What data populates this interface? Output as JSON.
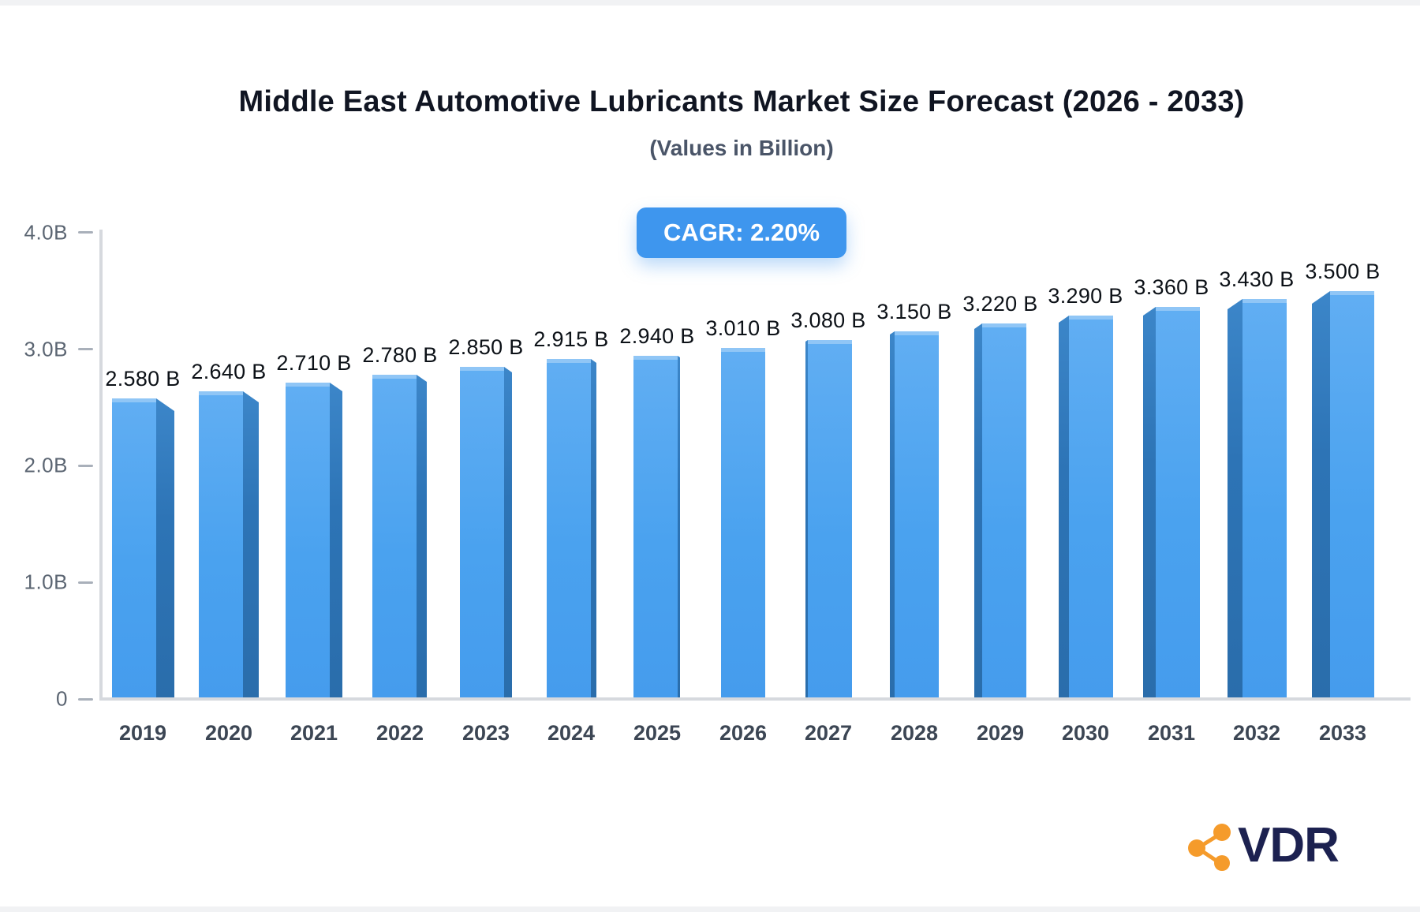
{
  "title": "Middle East Automotive Lubricants Market Size Forecast (2026 - 2033)",
  "subtitle": "(Values in Billion)",
  "cagr_badge": "CAGR: 2.20%",
  "logo": {
    "text": "VDR",
    "icon": "share-network-icon",
    "icon_color": "#F59B2B",
    "text_color": "#1C2150"
  },
  "colors": {
    "bar_face": "#4DA3F0",
    "bar_side": "#2D74B6",
    "badge_bg": "#3E96EE",
    "axis": "#D6D9DE",
    "tick_text": "#5B6572",
    "year_text": "#3C4654"
  },
  "chart_data": {
    "type": "bar",
    "style": "3d-columns-center-perspective",
    "title": "Middle East Automotive Lubricants Market Size Forecast (2026 - 2033)",
    "subtitle": "(Values in Billion)",
    "cagr": "2.20%",
    "categories": [
      "2019",
      "2020",
      "2021",
      "2022",
      "2023",
      "2024",
      "2025",
      "2026",
      "2027",
      "2028",
      "2029",
      "2030",
      "2031",
      "2032",
      "2033"
    ],
    "values": [
      2.58,
      2.64,
      2.71,
      2.78,
      2.85,
      2.915,
      2.94,
      3.01,
      3.08,
      3.15,
      3.22,
      3.29,
      3.36,
      3.43,
      3.5
    ],
    "display_labels": [
      "2.580 B",
      "2.640 B",
      "2.710 B",
      "2.780 B",
      "2.850 B",
      "2.915 B",
      "2.940 B",
      "3.010 B",
      "3.080 B",
      "3.150 B",
      "3.220 B",
      "3.290 B",
      "3.360 B",
      "3.430 B",
      "3.500 B"
    ],
    "unit": "Billion",
    "xlabel": "",
    "ylabel": "",
    "ylim": [
      0,
      4
    ],
    "y_ticks": [
      {
        "label": "0",
        "value": 0
      },
      {
        "label": "1.0B",
        "value": 1
      },
      {
        "label": "2.0B",
        "value": 2
      },
      {
        "label": "3.0B",
        "value": 3
      },
      {
        "label": "4.0B",
        "value": 4
      }
    ],
    "grid": false,
    "legend": false
  }
}
